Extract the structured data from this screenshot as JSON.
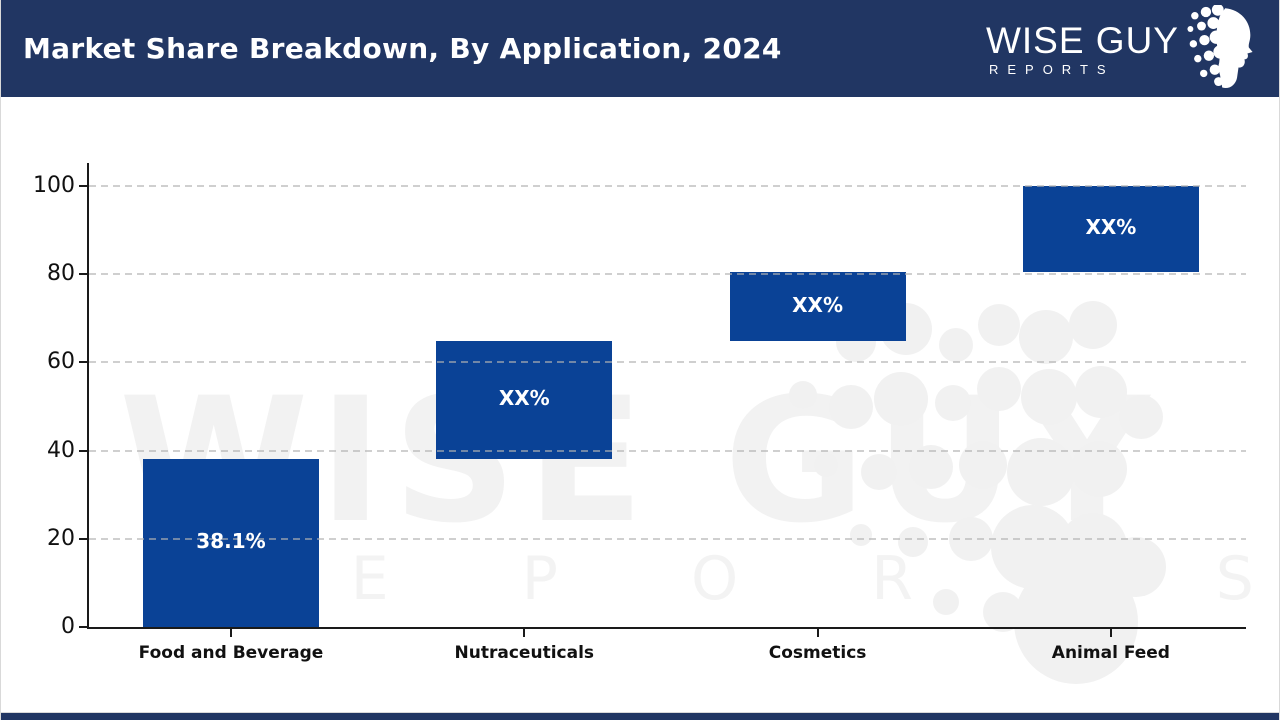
{
  "header": {
    "title": "Market Share Breakdown, By Application, 2024",
    "bg_color": "#213663",
    "logo": {
      "line1": "WISE GUY",
      "line2": "REPORTS"
    }
  },
  "chart_data": {
    "type": "bar",
    "subtype": "waterfall",
    "title": "Market Share Breakdown, By Application, 2024",
    "xlabel": "",
    "ylabel": "",
    "categories": [
      "Food and Beverage",
      "Nutraceuticals",
      "Cosmetics",
      "Animal Feed"
    ],
    "segments": [
      {
        "category": "Food and Beverage",
        "start": 0,
        "end": 38.1,
        "value": 38.1,
        "label": "38.1%"
      },
      {
        "category": "Nutraceuticals",
        "start": 38.1,
        "end": 64.8,
        "value": 26.7,
        "label": "XX%"
      },
      {
        "category": "Cosmetics",
        "start": 64.8,
        "end": 80.4,
        "value": 15.6,
        "label": "XX%"
      },
      {
        "category": "Animal Feed",
        "start": 80.4,
        "end": 100,
        "value": 19.6,
        "label": "XX%"
      }
    ],
    "yticks": [
      0,
      20,
      40,
      60,
      80,
      100
    ],
    "ylim": [
      0,
      105
    ],
    "bar_color": "#0a4296",
    "label_color": "#ffffff",
    "grid": "horizontal dashed, drawn over bars",
    "legend": "none",
    "watermark": {
      "line1": "WISE GUY",
      "line2": "R E P O R T S"
    }
  }
}
